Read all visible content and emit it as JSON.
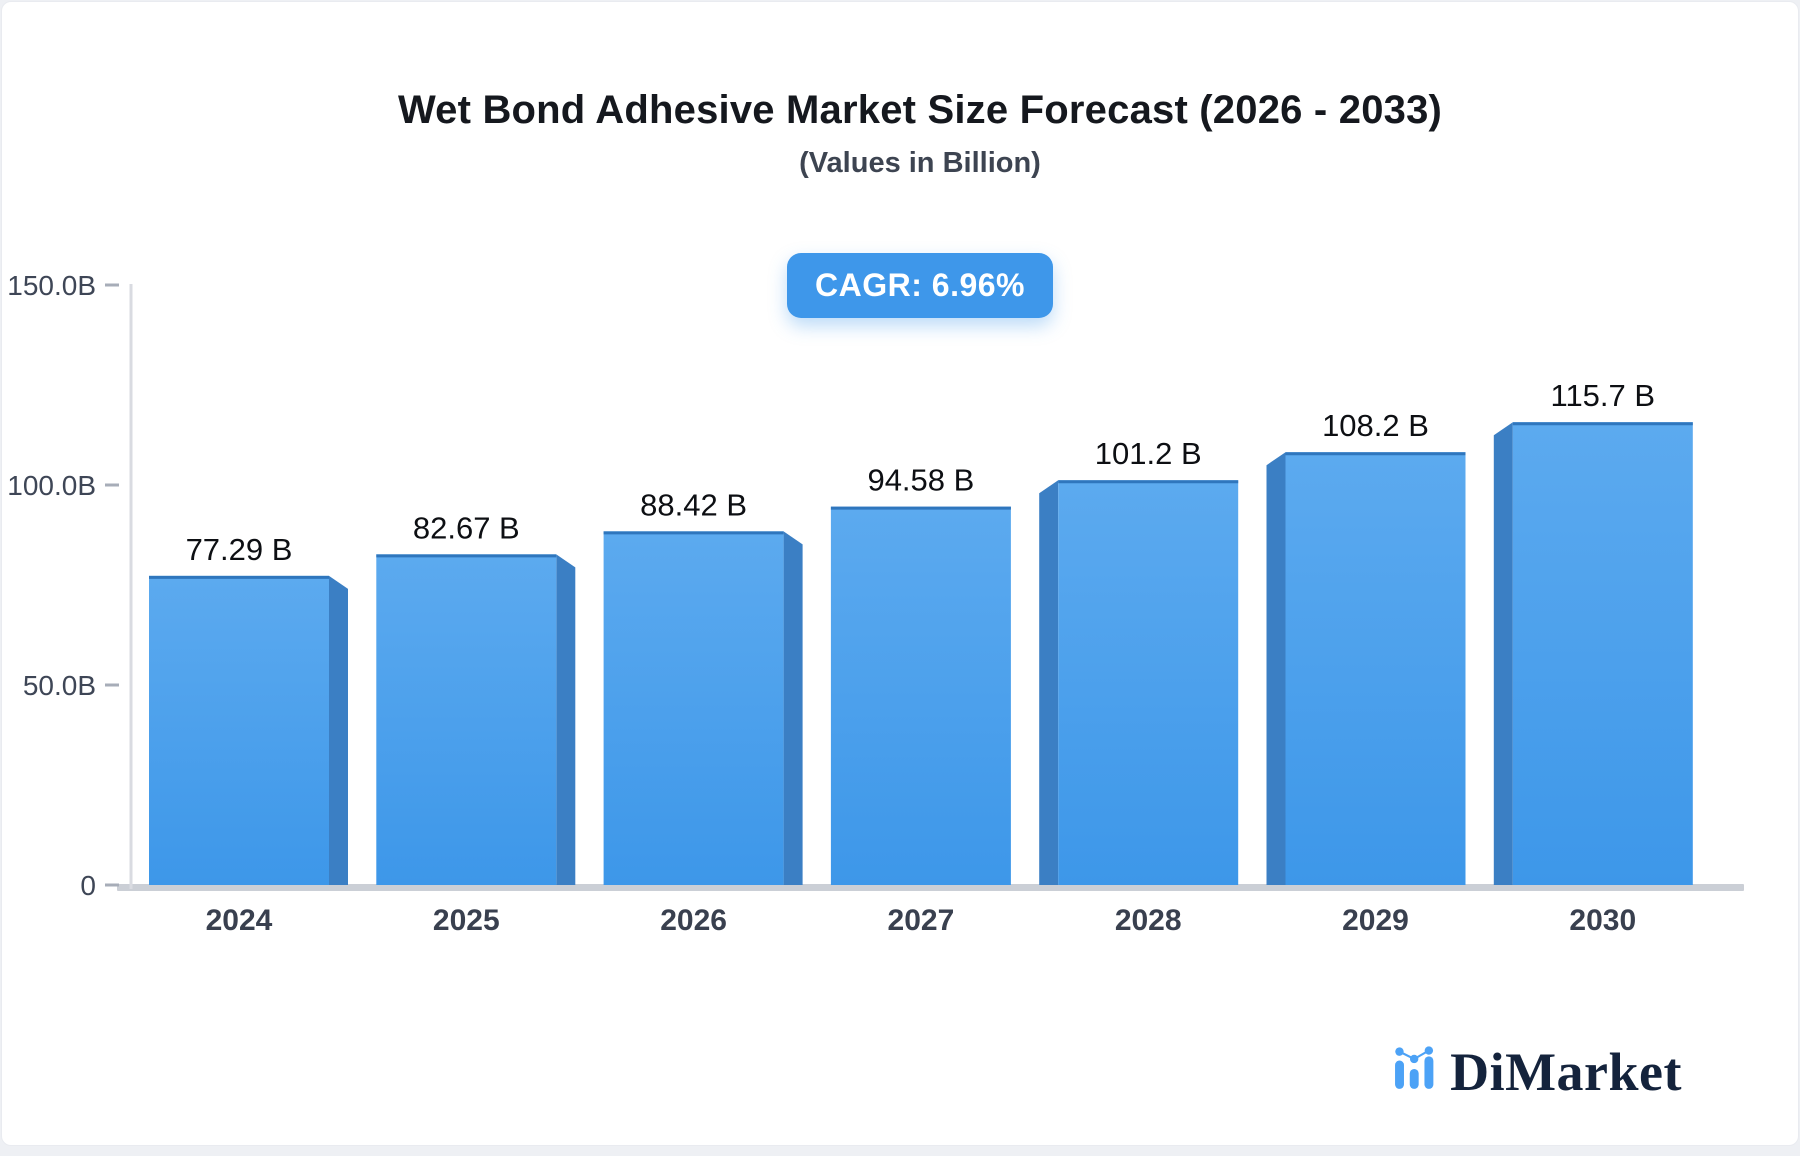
{
  "title": "Wet Bond Adhesive Market Size Forecast (2026 - 2033)",
  "subtitle": "(Values in Billion)",
  "badge": {
    "label": "CAGR: 6.96%",
    "background_color": "#3E97EA",
    "text_color": "#FFFFFF"
  },
  "logo": {
    "text": "DiMarket",
    "icon": "bar-chart-icon",
    "icon_color": "#4CA2F6",
    "text_color": "#14233C"
  },
  "chart_data": {
    "type": "bar",
    "title": "Wet Bond Adhesive Market Size Forecast (2026 - 2033)",
    "subtitle": "(Values in Billion)",
    "categories": [
      "2024",
      "2025",
      "2026",
      "2027",
      "2028",
      "2029",
      "2030"
    ],
    "values": [
      77.29,
      82.67,
      88.42,
      94.58,
      101.2,
      108.2,
      115.7
    ],
    "value_labels": [
      "77.29 B",
      "82.67 B",
      "88.42 B",
      "94.58 B",
      "101.2 B",
      "108.2 B",
      "115.7 B"
    ],
    "unit": "Billion",
    "xlabel": "",
    "ylabel": "",
    "ylim": [
      0,
      150
    ],
    "y_ticks": [
      {
        "value": 150,
        "label": "150.0B"
      },
      {
        "value": 100,
        "label": "100.0B"
      },
      {
        "value": 50,
        "label": "50.0B"
      },
      {
        "value": 0,
        "label": "0"
      }
    ],
    "grid": false,
    "legend": null,
    "style": "3d-perspective-bars",
    "colors": {
      "bar_gradient_top": "#5CAAEF",
      "bar_gradient_bottom": "#3D97E9",
      "bar_side": "#3B7FC4",
      "bar_top_stroke": "#2F76BD",
      "axis_line": "#D9DBE1",
      "baseline_strip": "#CBCFD6",
      "tick": "#A7ADB8",
      "y_label_text": "#3E4656",
      "x_label_text": "#39404F",
      "value_label_text": "#0D0F13"
    }
  }
}
